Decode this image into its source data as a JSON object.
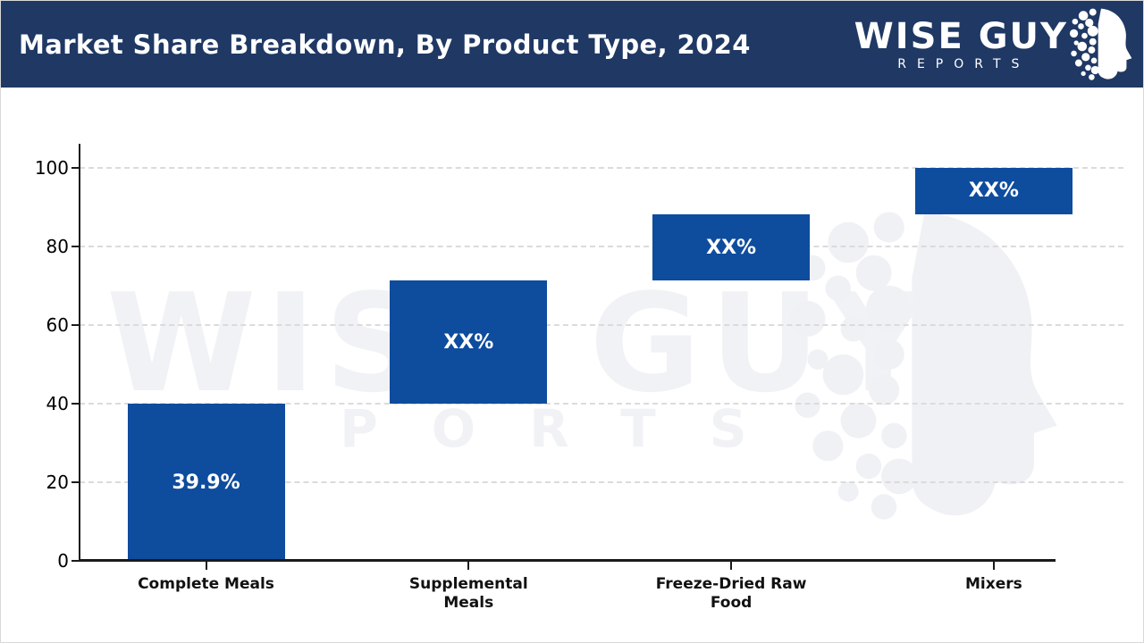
{
  "header": {
    "title": "Market Share Breakdown, By Product Type, 2024",
    "bg_color": "#1F3864",
    "logo": {
      "line1": "WISE GUY",
      "line2": "REPORTS"
    }
  },
  "watermark": {
    "line1": "WISE GUY",
    "line2": "REPORTS"
  },
  "chart_data": {
    "type": "bar",
    "subtype": "waterfall",
    "title": "Market Share Breakdown, By Product Type, 2024",
    "categories": [
      "Complete Meals",
      "Supplemental Meals",
      "Freeze-Dried Raw Food",
      "Mixers"
    ],
    "series": [
      {
        "name": "Market share (%)",
        "segments": [
          {
            "category": "Complete Meals",
            "start": 0,
            "end": 39.9,
            "label": "39.9%"
          },
          {
            "category": "Supplemental Meals",
            "start": 39.9,
            "end": 71.3,
            "label": "XX%"
          },
          {
            "category": "Freeze-Dried Raw Food",
            "start": 71.3,
            "end": 88.2,
            "label": "XX%"
          },
          {
            "category": "Mixers",
            "start": 88.2,
            "end": 100,
            "label": "XX%"
          }
        ]
      }
    ],
    "ylim": [
      0,
      100
    ],
    "yticks": [
      0,
      20,
      40,
      60,
      80,
      100
    ],
    "grid": "horizontal-dashed",
    "legend": null,
    "bar_color": "#0E4C9E",
    "bar_label_color": "#FFFFFF",
    "axis_color": "#1A1A1A",
    "grid_color": "#DBDBDB",
    "watermark_color": "#F0F1F4"
  }
}
